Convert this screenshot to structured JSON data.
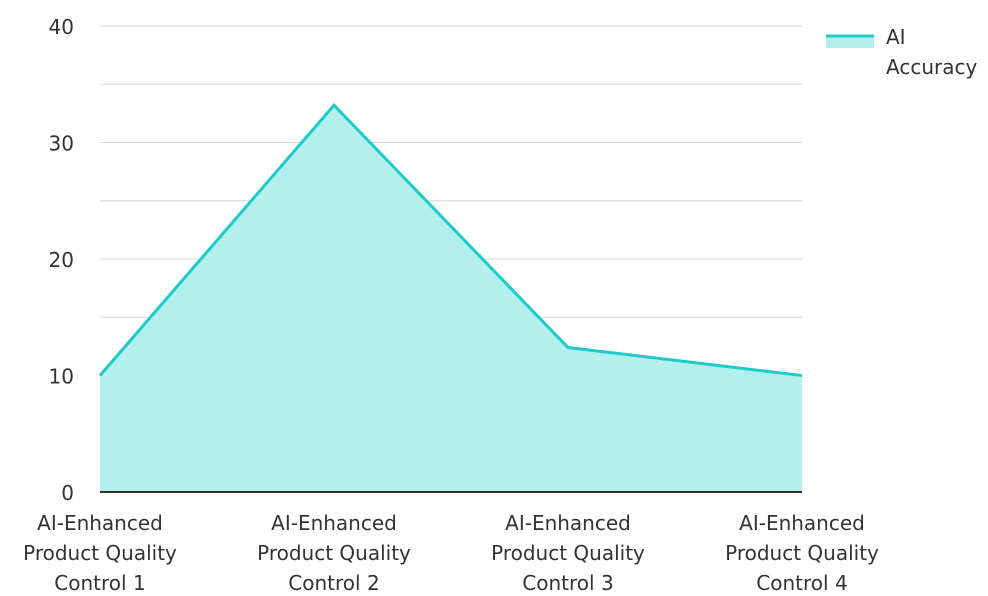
{
  "chart_data": {
    "type": "area",
    "categories": [
      "AI-Enhanced Product Quality Control 1",
      "AI-Enhanced Product Quality Control 2",
      "AI-Enhanced Product Quality Control 3",
      "AI-Enhanced Product Quality Control 4"
    ],
    "category_lines": [
      [
        "AI-Enhanced",
        "Product Quality",
        "Control 1"
      ],
      [
        "AI-Enhanced",
        "Product Quality",
        "Control 2"
      ],
      [
        "AI-Enhanced",
        "Product Quality",
        "Control 3"
      ],
      [
        "AI-Enhanced",
        "Product Quality",
        "Control 4"
      ]
    ],
    "series": [
      {
        "name": "AI Accuracy",
        "name_lines": [
          "AI",
          "Accuracy"
        ],
        "values": [
          10,
          33.2,
          12.4,
          10
        ]
      }
    ],
    "y_ticks": [
      "0",
      "10",
      "20",
      "30",
      "40"
    ],
    "ylim": [
      0,
      40
    ],
    "grid": true,
    "minor_grid_step": 5,
    "legend_position": "top-right",
    "colors": {
      "line": "#1ecbc9",
      "fill": "#b2efed",
      "grid": "#d6d6d6",
      "axis": "#333333"
    }
  }
}
